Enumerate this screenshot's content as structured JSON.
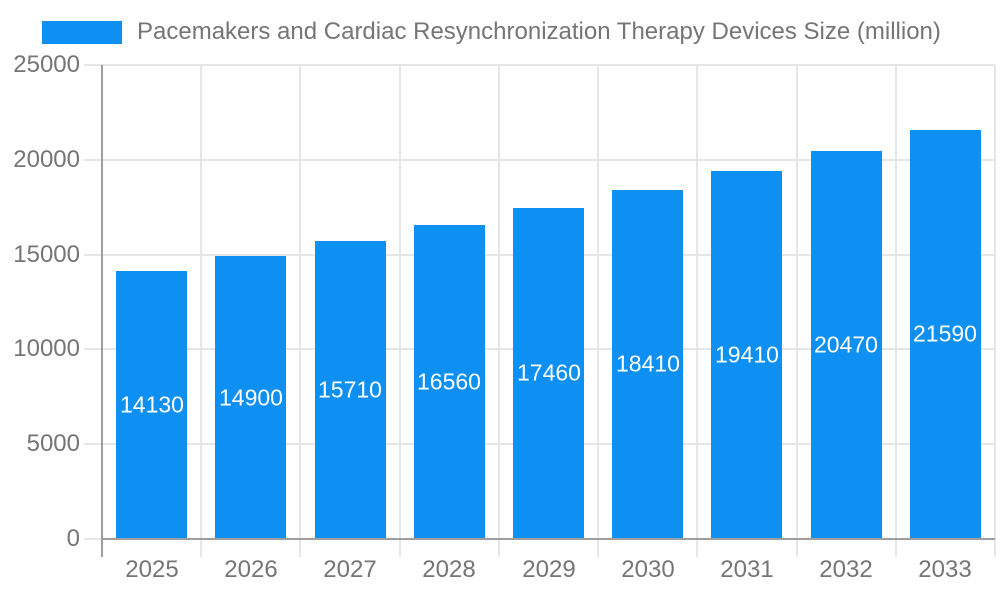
{
  "chart_data": {
    "type": "bar",
    "title": "Pacemakers and Cardiac Resynchronization Therapy Devices Size (million)",
    "categories": [
      "2025",
      "2026",
      "2027",
      "2028",
      "2029",
      "2030",
      "2031",
      "2032",
      "2033"
    ],
    "values": [
      14130,
      14900,
      15710,
      16560,
      17460,
      18410,
      19410,
      20470,
      21590
    ],
    "xlabel": "",
    "ylabel": "",
    "ylim": [
      0,
      25000
    ],
    "yticks": [
      0,
      5000,
      10000,
      15000,
      20000,
      25000
    ],
    "grid": "on",
    "legend_position": "top-left",
    "colors": {
      "bar": "#0d90f2",
      "bar_value_label": "#ffffff",
      "axis_text": "#757575",
      "title_text": "#757575",
      "gridline": "#e6e6e6",
      "axis_line": "#9e9e9e",
      "background": "#ffffff"
    }
  }
}
